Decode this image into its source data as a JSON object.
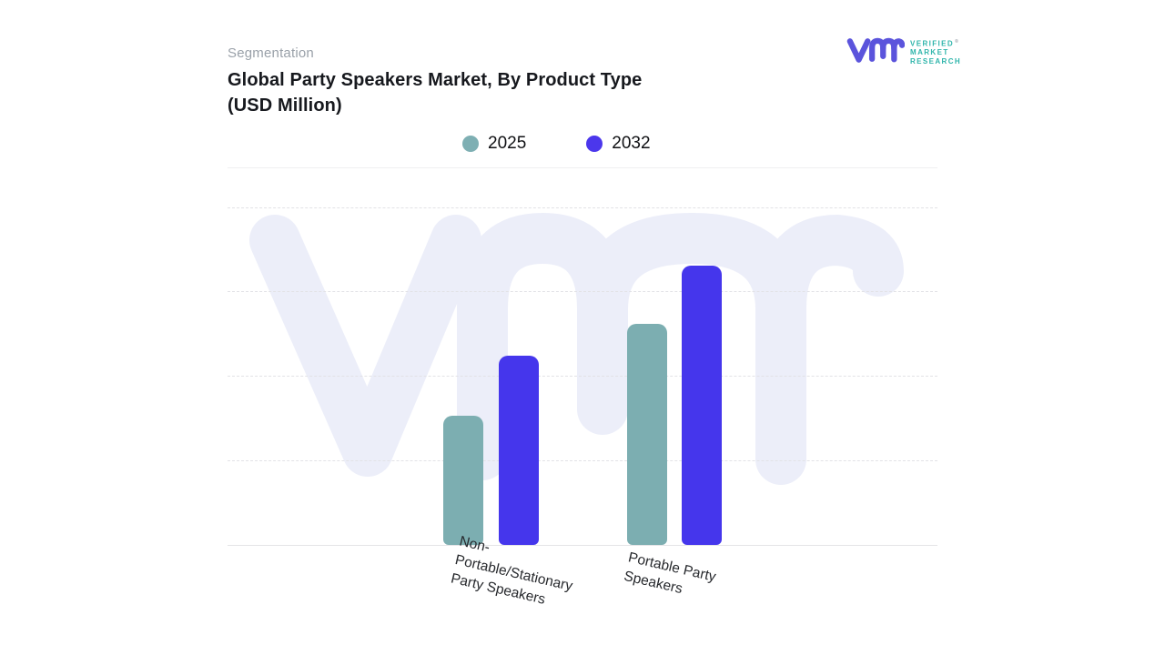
{
  "header": {
    "eyebrow": "Segmentation",
    "title_line1": "Global Party Speakers Market, By Product Type",
    "title_line2": "(USD Million)"
  },
  "logo": {
    "brand_lines": [
      "VERIFIED",
      "MARKET",
      "RESEARCH"
    ],
    "registered_mark": "®",
    "mark_color": "#5b54dc",
    "text_color": "#2fb5ab"
  },
  "legend": {
    "items": [
      {
        "label": "2025",
        "color": "#7eafb3"
      },
      {
        "label": "2032",
        "color": "#4b37ec"
      }
    ]
  },
  "chart_data": {
    "type": "bar",
    "title": "Global Party Speakers Market, By Product Type (USD Million)",
    "categories": [
      "Non-Portable/Stationary Party Speakers",
      "Portable Party Speakers"
    ],
    "series": [
      {
        "name": "2025",
        "color": "#7caeb1",
        "values": [
          1.53,
          2.61
        ]
      },
      {
        "name": "2032",
        "color": "#4536ec",
        "values": [
          2.24,
          3.3
        ]
      }
    ],
    "xlabel": "",
    "ylabel": "",
    "ylim": [
      0,
      4
    ],
    "y_axis_tick_labels_visible": false,
    "value_note": "No numeric y-axis labels shown; values estimated in dashed-gridline units (1 unit per gridline interval)",
    "grid": "horizontal dashed",
    "legend_position": "top-center",
    "watermark_text": "vmr"
  },
  "x_axis": {
    "labels": [
      {
        "lines": [
          "Non-",
          "Portable/Stationary",
          "Party Speakers"
        ]
      },
      {
        "lines": [
          "Portable Party",
          "Speakers"
        ]
      }
    ],
    "rotation_deg": 13
  },
  "colors": {
    "background": "#ffffff",
    "gridline": "#e2e2e6",
    "axis_line": "#e4e4e7",
    "watermark": "#eceef9",
    "eyebrow_text": "#9aa1a9",
    "title_text": "#17191e"
  }
}
